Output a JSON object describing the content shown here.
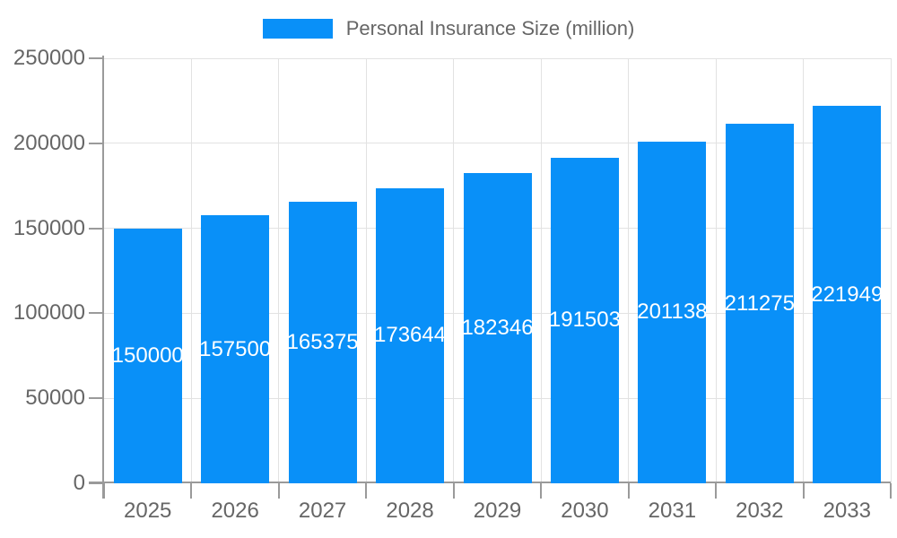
{
  "legend": {
    "label": "Personal Insurance Size (million)"
  },
  "chart_data": {
    "type": "bar",
    "title": "Personal Insurance Size (million)",
    "categories": [
      "2025",
      "2026",
      "2027",
      "2028",
      "2029",
      "2030",
      "2031",
      "2032",
      "2033"
    ],
    "values": [
      150000,
      157500,
      165375,
      173644,
      182346,
      191503,
      201138,
      211275,
      221949
    ],
    "bar_labels": [
      "150000",
      "157500",
      "165375",
      "173644",
      "182346",
      "191503",
      "201138",
      "211275",
      "221949"
    ],
    "xlabel": "",
    "ylabel": "",
    "ylim": [
      0,
      250000
    ],
    "y_ticks": [
      0,
      50000,
      100000,
      150000,
      200000,
      250000
    ],
    "y_tick_labels": [
      "0",
      "50000",
      "100000",
      "150000",
      "200000",
      "250000"
    ],
    "grid": true,
    "legend_position": "top",
    "colors": {
      "bar": "#0990f8",
      "grid": "#e2e2e2",
      "axis": "#9a9a9a",
      "tick_label": "#666666",
      "bar_label": "#ffffff",
      "background": "#ffffff"
    }
  }
}
